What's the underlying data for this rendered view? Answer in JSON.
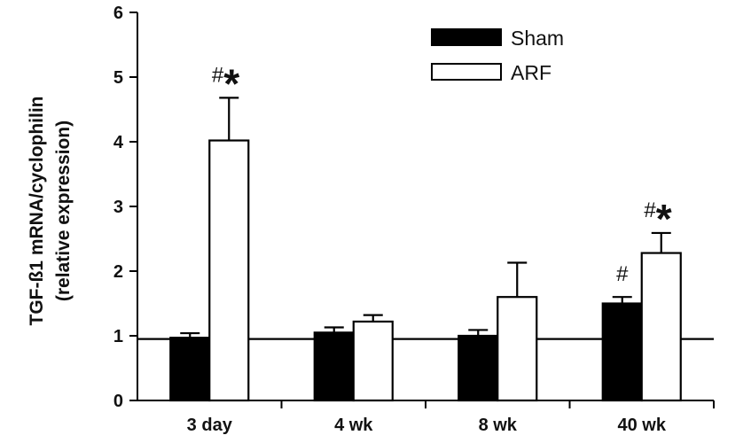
{
  "chart_data": {
    "type": "bar",
    "categories": [
      "3 day",
      "4 wk",
      "8 wk",
      "40 wk"
    ],
    "series": [
      {
        "name": "Sham",
        "values": [
          0.97,
          1.05,
          1.0,
          1.5
        ],
        "errors": [
          0.07,
          0.08,
          0.09,
          0.1
        ],
        "color": "#000000"
      },
      {
        "name": "ARF",
        "values": [
          4.02,
          1.22,
          1.6,
          2.28
        ],
        "errors": [
          0.66,
          0.1,
          0.53,
          0.31
        ],
        "color": "#ffffff"
      }
    ],
    "ylabel_line1": "TGF-ß1 mRNA/cyclophilin",
    "ylabel_line2": "(relative expression)",
    "ylim": [
      0,
      6
    ],
    "yticks": [
      "0",
      "1",
      "2",
      "3",
      "4",
      "5",
      "6"
    ],
    "reference_line": 0.95,
    "grid": false,
    "legend_position": "top-right",
    "annotations": [
      {
        "category_index": 0,
        "series_index": 1,
        "hash": "#",
        "star": "*"
      },
      {
        "category_index": 3,
        "series_index": 0,
        "hash": "#",
        "star": ""
      },
      {
        "category_index": 3,
        "series_index": 1,
        "hash": "#",
        "star": "*"
      }
    ]
  }
}
